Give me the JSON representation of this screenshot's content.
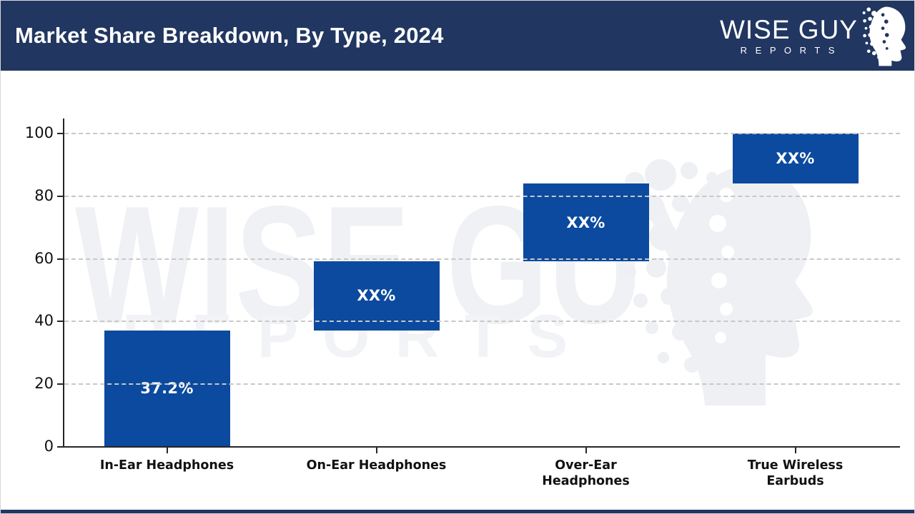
{
  "header": {
    "title": "Market Share Breakdown, By Type, 2024",
    "brand": {
      "name": "WISE GUY",
      "tagline": "R E P O R T S"
    }
  },
  "watermark": {
    "wordmark": "WISE GUY",
    "tagline": "R E P O R T S"
  },
  "chart_data": {
    "type": "bar",
    "subtype": "waterfall",
    "title": "Market Share Breakdown, By Type, 2024",
    "categories": [
      "In-Ear Headphones",
      "On-Ear Headphones",
      "Over-Ear Headphones",
      "True Wireless Earbuds"
    ],
    "x_tick_labels": [
      "In-Ear Headphones",
      "On-Ear Headphones",
      "Over-Ear\nHeadphones",
      "True Wireless\nEarbuds"
    ],
    "segments": [
      {
        "category": "In-Ear Headphones",
        "start": 0,
        "end": 37.2,
        "label": "37.2%"
      },
      {
        "category": "On-Ear Headphones",
        "start": 37.2,
        "end": 59.2,
        "label": "XX%"
      },
      {
        "category": "Over-Ear Headphones",
        "start": 59.2,
        "end": 84.0,
        "label": "XX%"
      },
      {
        "category": "True Wireless Earbuds",
        "start": 84.0,
        "end": 100.0,
        "label": "XX%"
      }
    ],
    "xlabel": "",
    "ylabel": "",
    "yticks": [
      0,
      20,
      40,
      60,
      80,
      100
    ],
    "ylim": [
      0,
      104.8
    ],
    "grid": "horizontal-dashed",
    "legend": "none",
    "bar_color": "#0b4a9e",
    "bar_label_color": "#ffffff"
  },
  "colors": {
    "header_bg": "#213660",
    "footer_bg": "#213660",
    "bar_fill": "#0b4a9e",
    "axis": "#262626",
    "gridline": "#c8c8c8",
    "tick_text": "#111111",
    "watermark": "#eff1f4",
    "page_bg": "#ffffff"
  }
}
